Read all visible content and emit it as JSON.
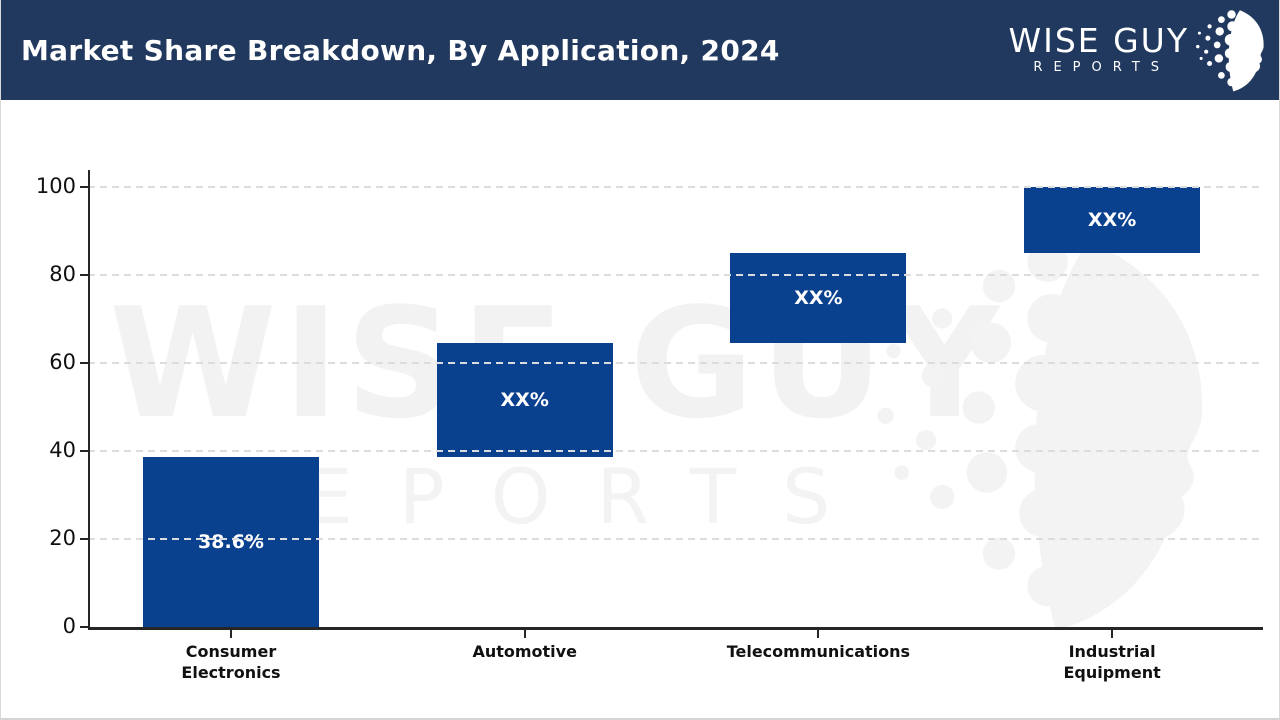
{
  "header": {
    "title": "Market Share Breakdown, By Application, 2024",
    "bg_color": "#22395f",
    "logo": {
      "name": "WISE GUY",
      "sub": "REPORTS"
    }
  },
  "watermark": {
    "word1": "WISE GUY",
    "word2": "REPORTS"
  },
  "chart_data": {
    "type": "bar",
    "subtype": "stacked-waterfall",
    "title": "Market Share Breakdown, By Application, 2024",
    "categories": [
      "Consumer Electronics",
      "Automotive",
      "Telecommunications",
      "Industrial Equipment"
    ],
    "categories_display": [
      [
        "Consumer",
        "Electronics"
      ],
      [
        "Automotive"
      ],
      [
        "Telecommunications"
      ],
      [
        "Industrial",
        "Equipment"
      ]
    ],
    "segments": [
      {
        "category": "Consumer Electronics",
        "label": "38.6%",
        "start": 0,
        "end": 38.6
      },
      {
        "category": "Automotive",
        "label": "XX%",
        "start": 38.6,
        "end": 64.5
      },
      {
        "category": "Telecommunications",
        "label": "XX%",
        "start": 64.5,
        "end": 85.1
      },
      {
        "category": "Industrial Equipment",
        "label": "XX%",
        "start": 85.1,
        "end": 100
      }
    ],
    "yticks": [
      0,
      20,
      40,
      60,
      80,
      100
    ],
    "ylim": [
      0,
      104
    ],
    "bar_color": "#0a418f",
    "bar_label_color": "#ffffff",
    "axis_color": "#262626",
    "grid": {
      "visible": true,
      "style": "dashed",
      "color": "#dcdcdc",
      "orientation": "horizontal"
    },
    "legend": null
  }
}
